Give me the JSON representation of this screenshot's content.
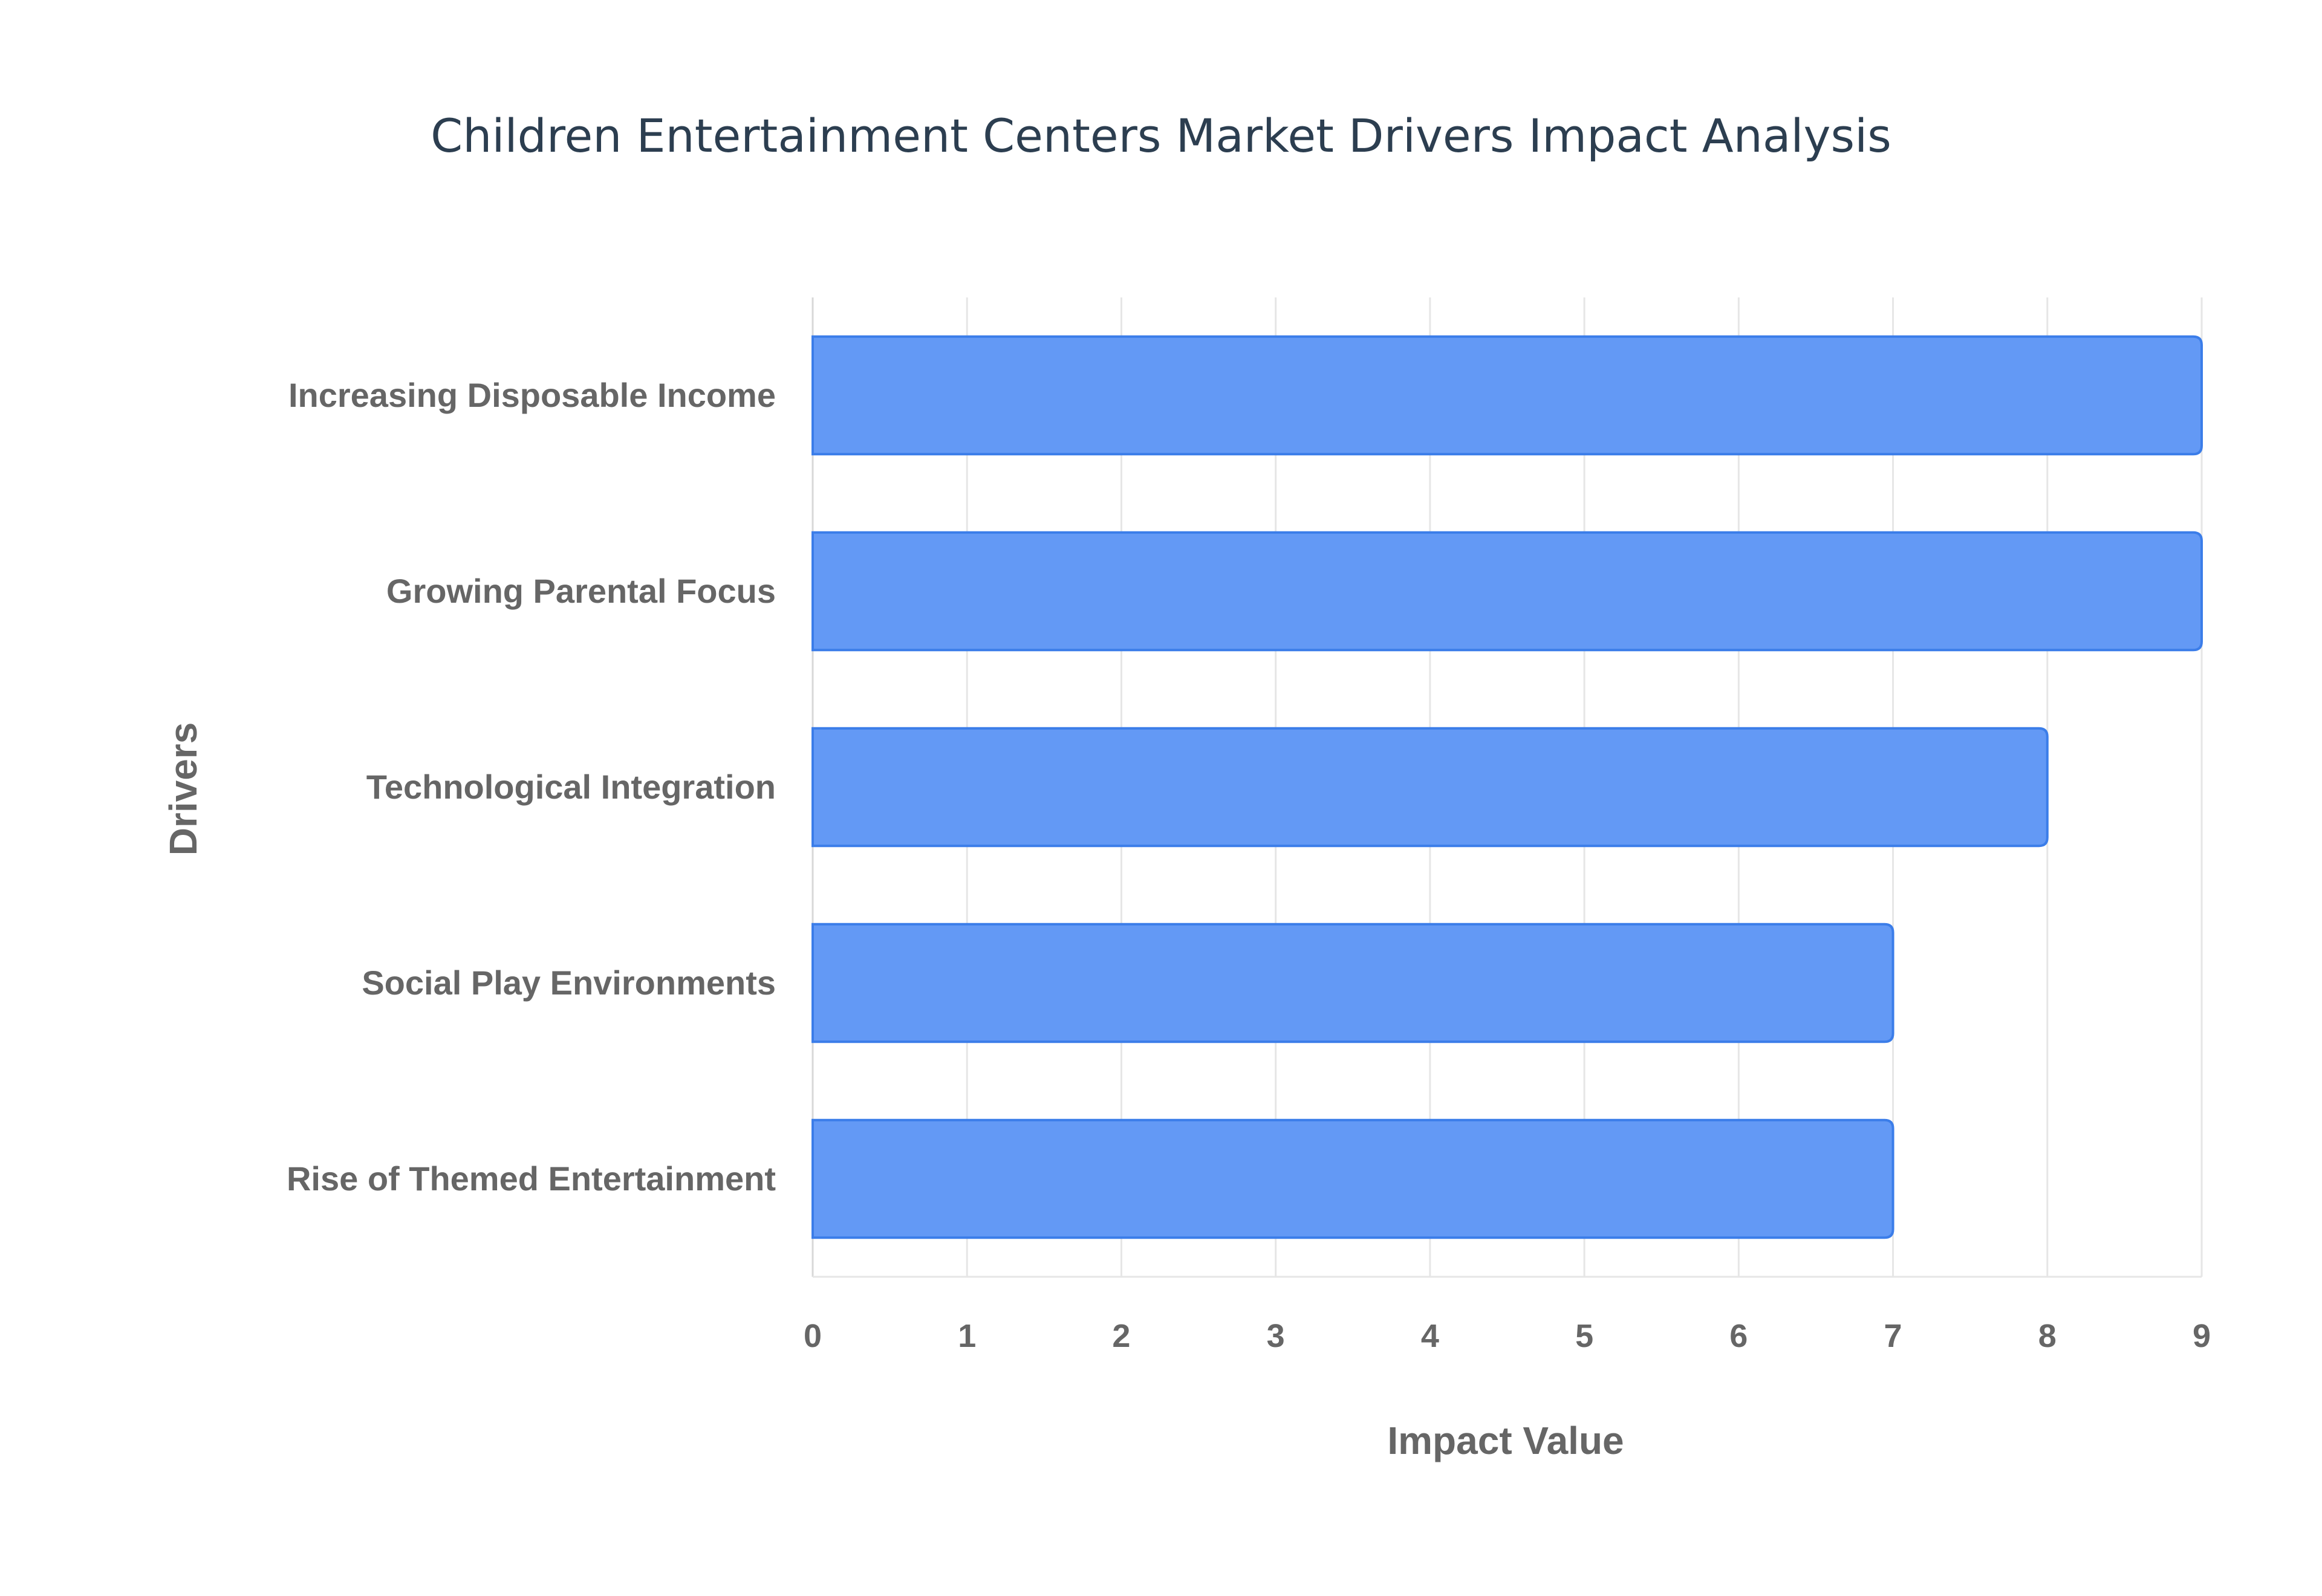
{
  "chart_data": {
    "type": "bar",
    "orientation": "horizontal",
    "title": "Children Entertainment Centers Market Drivers Impact Analysis",
    "xlabel": "Impact Value",
    "ylabel": "Drivers",
    "categories": [
      "Increasing Disposable Income",
      "Growing Parental Focus",
      "Technological Integration",
      "Social Play Environments",
      "Rise of Themed Entertainment"
    ],
    "values": [
      9,
      9,
      8,
      7,
      7
    ],
    "xlim": [
      0,
      9
    ],
    "xticks": [
      "0",
      "1",
      "2",
      "3",
      "4",
      "5",
      "6",
      "7",
      "8",
      "9"
    ],
    "grid": true,
    "bar_color": "#6399f5",
    "bar_edge_color": "#3b7de9"
  }
}
